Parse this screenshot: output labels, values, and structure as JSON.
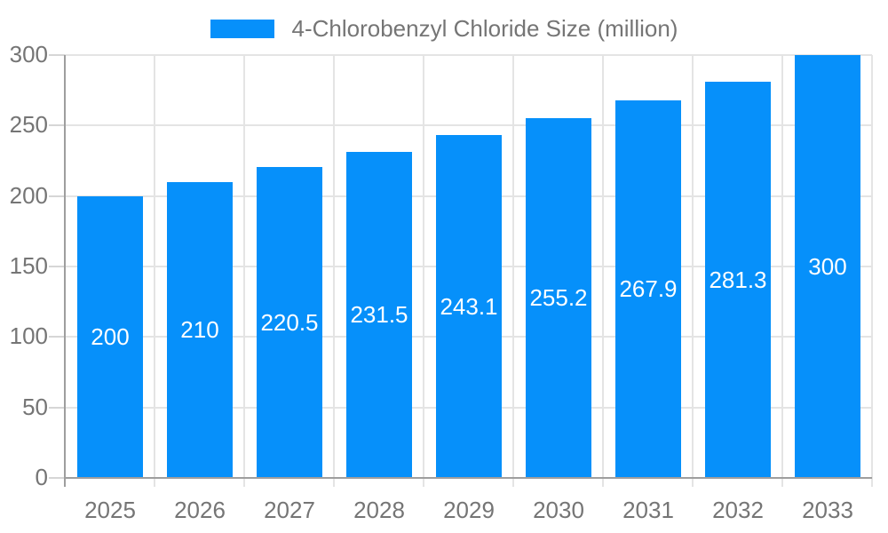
{
  "chart_data": {
    "type": "bar",
    "title": "",
    "legend": "4-Chlorobenzyl Chloride Size (million)",
    "categories": [
      "2025",
      "2026",
      "2027",
      "2028",
      "2029",
      "2030",
      "2031",
      "2032",
      "2033"
    ],
    "series": [
      {
        "name": "4-Chlorobenzyl Chloride Size (million)",
        "values": [
          200,
          210,
          220.5,
          231.5,
          243.1,
          255.2,
          267.9,
          281.3,
          300
        ]
      }
    ],
    "value_labels": [
      "200",
      "210",
      "220.5",
      "231.5",
      "243.1",
      "255.2",
      "267.9",
      "281.3",
      "300"
    ],
    "xlabel": "",
    "ylabel": "",
    "ylim": [
      0,
      300
    ],
    "yticks": [
      0,
      50,
      100,
      150,
      200,
      250,
      300
    ],
    "grid": true,
    "legend_position": "top-center",
    "colors": {
      "bar": "#0690fa",
      "grid": "#e4e4e4",
      "axis": "#9e9e9e",
      "tick": "#d6d6d6",
      "text": "#757575",
      "value_label": "#ffffff",
      "background": "#ffffff"
    }
  }
}
